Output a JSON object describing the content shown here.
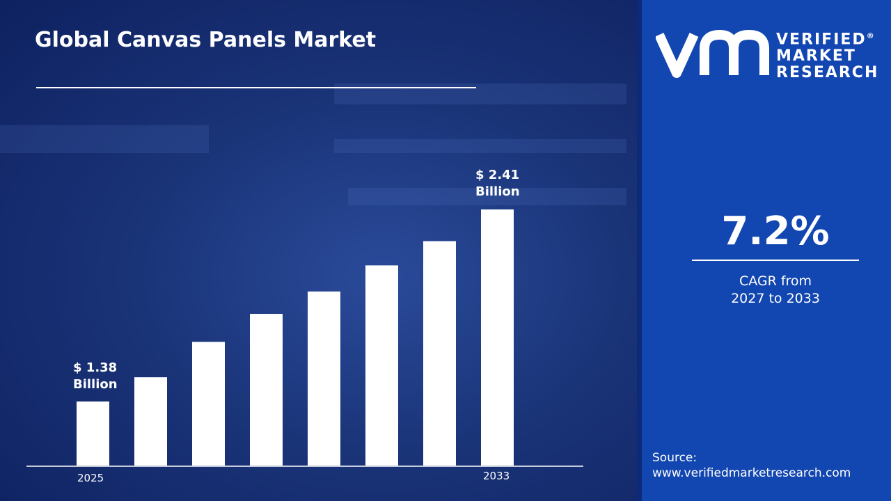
{
  "title": "Global Canvas Panels Market",
  "logo": {
    "line1": "VERIFIED",
    "line2": "MARKET",
    "line3": "RESEARCH",
    "mark": "®"
  },
  "cagr": {
    "value": "7.2%",
    "label_line1": "CAGR from",
    "label_line2": "2027 to 2033"
  },
  "source": {
    "label": "Source:",
    "url": "www.verifiedmarketresearch.com"
  },
  "colors": {
    "panel": "#1246b0",
    "bar": "#ffffff",
    "background": "#1a3478"
  },
  "chart_data": {
    "type": "bar",
    "categories": [
      "2025",
      "",
      "",
      "",
      "",
      "",
      "",
      "2033"
    ],
    "values": [
      1.38,
      1.51,
      1.7,
      1.85,
      1.97,
      2.11,
      2.24,
      2.41
    ],
    "unit": "USD Billion",
    "data_labels": [
      {
        "index": 0,
        "line1": "$ 1.38",
        "line2": "Billion"
      },
      {
        "index": 7,
        "line1": "$ 2.41",
        "line2": "Billion"
      }
    ],
    "grid": false,
    "legend": "none"
  }
}
